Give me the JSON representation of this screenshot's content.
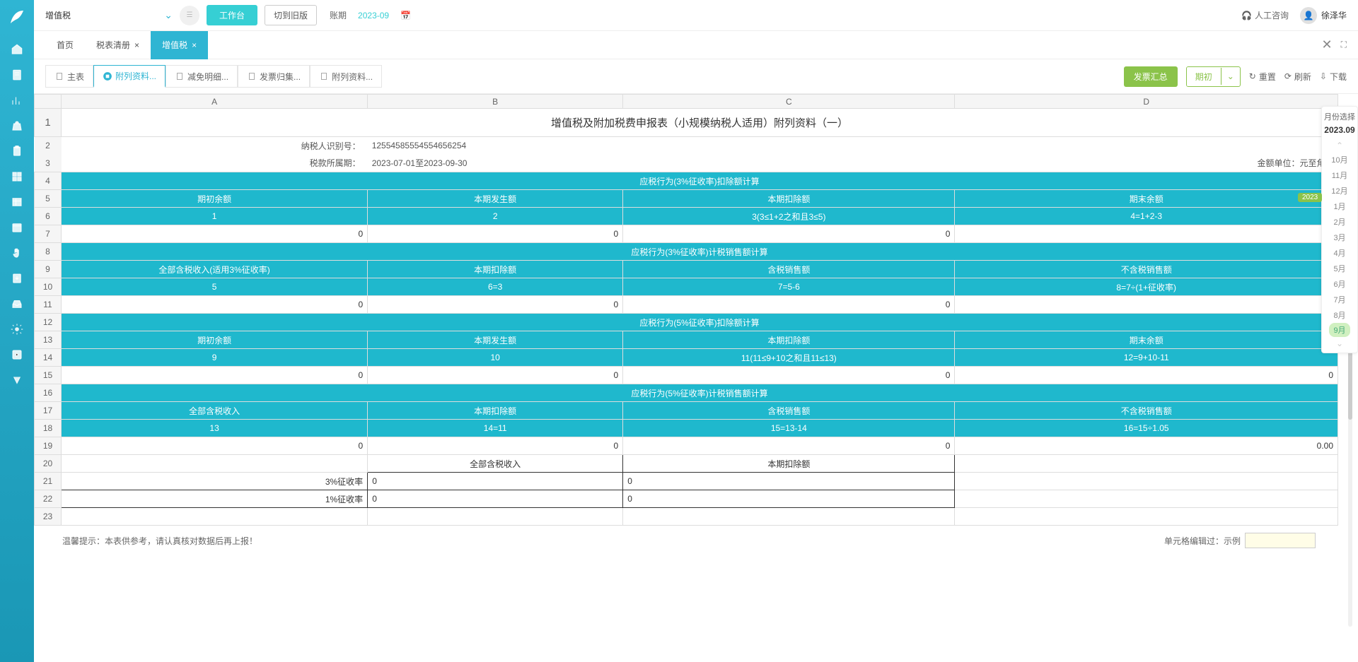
{
  "topbar": {
    "selector_text": "增值税",
    "workbench_btn": "工作台",
    "switch_old_btn": "切到旧版",
    "period_label": "账期",
    "period_value": "2023-09",
    "consult_text": "人工咨询",
    "user_name": "徐泽华"
  },
  "nav_tabs": [
    {
      "label": "首页",
      "closable": false,
      "active": false
    },
    {
      "label": "税表清册",
      "closable": true,
      "active": false
    },
    {
      "label": "增值税",
      "closable": true,
      "active": true
    }
  ],
  "sub_tabs": [
    {
      "label": "主表",
      "active": false
    },
    {
      "label": "附列资料...",
      "active": true
    },
    {
      "label": "减免明细...",
      "active": false
    },
    {
      "label": "发票归集...",
      "active": false
    },
    {
      "label": "附列资料...",
      "active": false
    }
  ],
  "sub_actions": {
    "invoice_summary": "发票汇总",
    "period_start": "期初",
    "reset": "重置",
    "refresh": "刷新",
    "download": "下载"
  },
  "sheet": {
    "cols": [
      "A",
      "B",
      "C",
      "D"
    ],
    "title": "增值税及附加税费申报表（小规模纳税人适用）附列资料（一）",
    "taxpayer_id_label": "纳税人识别号：",
    "taxpayer_id": "12554585554554656254",
    "tax_period_label": "税款所属期：",
    "tax_period": "2023-07-01至2023-09-30",
    "amount_unit": "金额单位：元至角分",
    "sections": [
      {
        "header": "应税行为(3%征收率)扣除额计算",
        "row_a": [
          "期初余额",
          "本期发生额",
          "本期扣除额",
          "期末余额"
        ],
        "row_b": [
          "1",
          "2",
          "3(3≤1+2之和且3≤5)",
          "4=1+2-3"
        ],
        "values": [
          "0",
          "0",
          "0",
          "0"
        ]
      },
      {
        "header": "应税行为(3%征收率)计税销售额计算",
        "row_a": [
          "全部含税收入(适用3%征收率)",
          "本期扣除额",
          "含税销售额",
          "不含税销售额"
        ],
        "row_b": [
          "5",
          "6=3",
          "7=5-6",
          "8=7÷(1+征收率)"
        ],
        "values": [
          "0",
          "0",
          "0",
          "0"
        ]
      },
      {
        "header": "应税行为(5%征收率)扣除额计算",
        "row_a": [
          "期初余额",
          "本期发生额",
          "本期扣除额",
          "期末余额"
        ],
        "row_b": [
          "9",
          "10",
          "11(11≤9+10之和且11≤13)",
          "12=9+10-11"
        ],
        "values": [
          "0",
          "0",
          "0",
          "0"
        ]
      },
      {
        "header": "应税行为(5%征收率)计税销售额计算",
        "row_a": [
          "全部含税收入",
          "本期扣除额",
          "含税销售额",
          "不含税销售额"
        ],
        "row_b": [
          "13",
          "14=11",
          "15=13-14",
          "16=15÷1.05"
        ],
        "values": [
          "0",
          "0",
          "0",
          "0.00"
        ]
      }
    ],
    "bottom_table": {
      "headers": [
        "全部含税收入",
        "本期扣除额"
      ],
      "rows": [
        {
          "label": "3%征收率",
          "v1": "0",
          "v2": "0"
        },
        {
          "label": "1%征收率",
          "v1": "0",
          "v2": "0"
        }
      ]
    },
    "row_count": 23
  },
  "footer": {
    "hint": "温馨提示：本表供参考，请认真核对数据后再上报！",
    "cell_edit_label": "单元格编辑过：示例"
  },
  "month_panel": {
    "title": "月份选择",
    "current": "2023.09",
    "year_badge": "2023",
    "items": [
      "10月",
      "11月",
      "12月",
      "1月",
      "2月",
      "3月",
      "4月",
      "5月",
      "6月",
      "7月",
      "8月",
      "9月"
    ],
    "active_index": 11
  },
  "colors": {
    "teal": "#1fb8cd",
    "green": "#8bc34a",
    "sidebar_top": "#2fb5d3",
    "sidebar_bottom": "#1a97b5"
  }
}
